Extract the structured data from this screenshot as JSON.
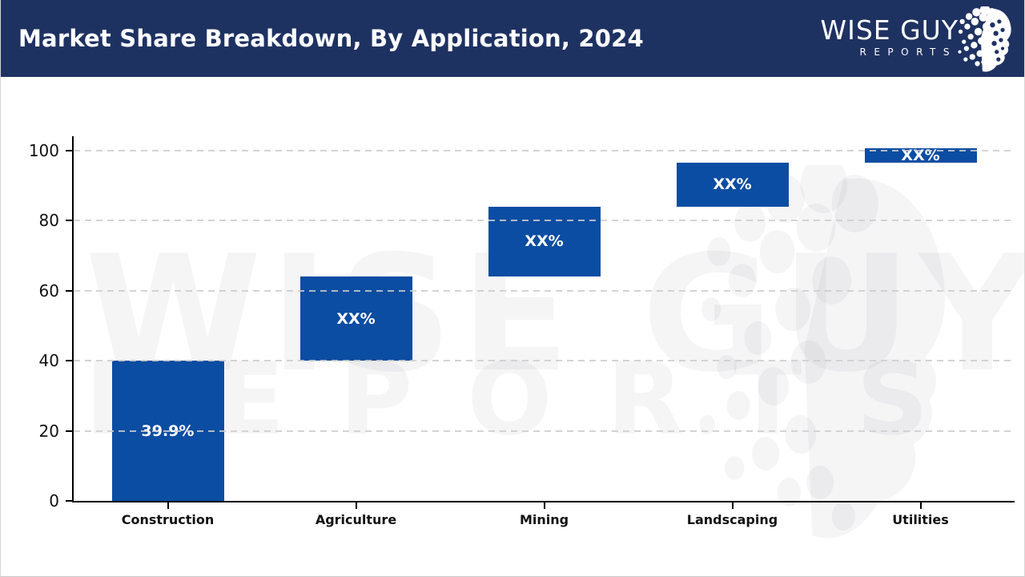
{
  "header": {
    "title": "Market Share Breakdown, By Application, 2024",
    "logo": {
      "line1": "WISE GUY",
      "line2": "REPORTS"
    }
  },
  "watermark": {
    "line1": "WISE GUY",
    "line2": "REPORTS"
  },
  "chart_data": {
    "type": "bar",
    "subtype": "waterfall-step",
    "title": "Market Share Breakdown, By Application, 2024",
    "xlabel": "",
    "ylabel": "",
    "categories": [
      "Construction",
      "Agriculture",
      "Mining",
      "Landscaping",
      "Utilities"
    ],
    "segments": [
      {
        "category": "Construction",
        "start": 0,
        "end": 39.9,
        "label": "39.9%"
      },
      {
        "category": "Agriculture",
        "start": 39.9,
        "end": 64.0,
        "label": "XX%"
      },
      {
        "category": "Mining",
        "start": 64.0,
        "end": 84.0,
        "label": "XX%"
      },
      {
        "category": "Landscaping",
        "start": 84.0,
        "end": 96.5,
        "label": "XX%"
      },
      {
        "category": "Utilities",
        "start": 96.5,
        "end": 100.5,
        "label": "XX%"
      }
    ],
    "yticks": [
      0,
      20,
      40,
      60,
      80,
      100
    ],
    "ylim": [
      0,
      104
    ],
    "grid": "dashed-horizontal-over-bars",
    "legend": "none"
  },
  "colors": {
    "header_navy": "#1e3262",
    "bar_blue": "#0b4da2",
    "bar_label": "#ffffff",
    "axis": "#000000",
    "grid": "#cdcdcd",
    "tick_text": "#111111"
  }
}
